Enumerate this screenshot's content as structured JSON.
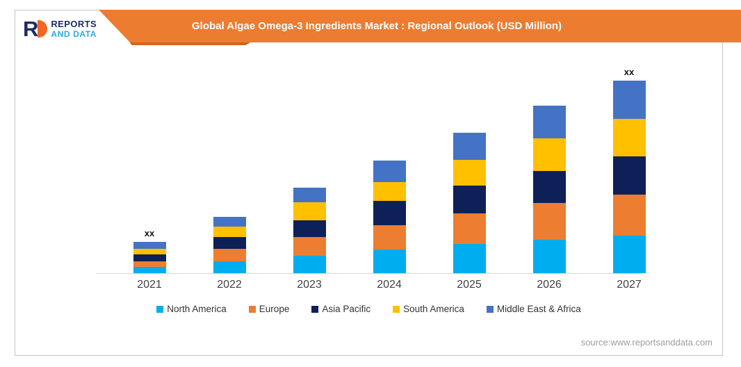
{
  "logo": {
    "mark_letter": "R",
    "line1": "REPORTS",
    "line2": "AND DATA",
    "mark_navy": "#202A5C",
    "mark_orange": "#F26522",
    "line2_color": "#29ABE2"
  },
  "banner": {
    "title": "Global Algae Omega-3 Ingredients Market : Regional Outlook (USD Million)",
    "bg_color": "#EC7C30",
    "fold_color": "#D2641F",
    "text_color": "#FFFFFF"
  },
  "chart_data": {
    "type": "bar",
    "stacked": true,
    "title": "Global Algae Omega-3 Ingredients Market : Regional Outlook (USD Million)",
    "categories": [
      "2021",
      "2022",
      "2023",
      "2024",
      "2025",
      "2026",
      "2027"
    ],
    "series": [
      {
        "name": "North America",
        "color": "#00AEEF",
        "values": [
          9,
          17,
          25,
          34,
          42,
          48,
          54
        ]
      },
      {
        "name": "Europe",
        "color": "#ED7D31",
        "values": [
          8,
          18,
          27,
          35,
          44,
          53,
          59
        ]
      },
      {
        "name": "Asia Pacific",
        "color": "#0D2158",
        "values": [
          10,
          17,
          24,
          35,
          40,
          46,
          55
        ]
      },
      {
        "name": "South America",
        "color": "#FFC000",
        "values": [
          8,
          15,
          26,
          27,
          37,
          47,
          54
        ]
      },
      {
        "name": "Middle East & Africa",
        "color": "#4472C4",
        "values": [
          10,
          14,
          21,
          31,
          39,
          47,
          55
        ]
      }
    ],
    "values_note": "actual figures masked in source image; values are relative bar heights read from pixels",
    "annotations": [
      {
        "category": "2021",
        "text": "xx"
      },
      {
        "category": "2027",
        "text": "xx"
      }
    ],
    "legend_position": "bottom",
    "y_axis_visible": false,
    "grid": false
  },
  "source": {
    "text": "source:www.reportsanddata.com"
  }
}
